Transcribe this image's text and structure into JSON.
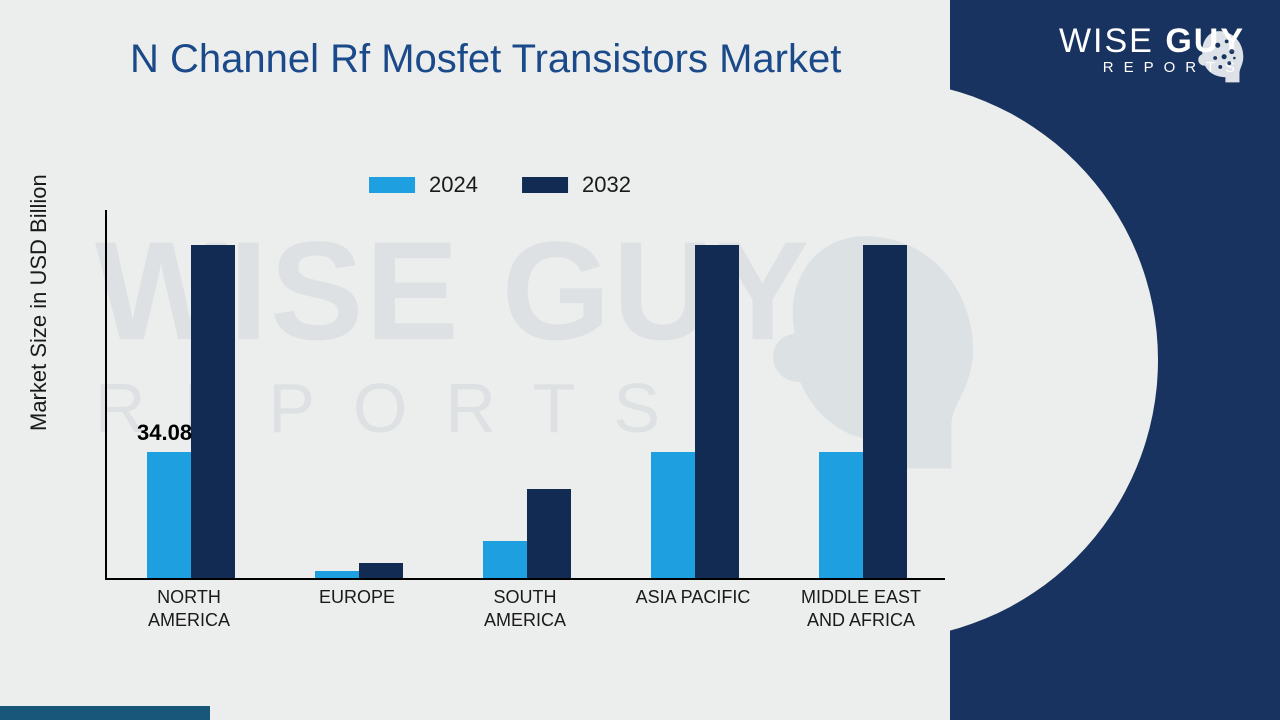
{
  "page": {
    "background_color": "#eceded",
    "accent_color": "#19577a",
    "panel_color": "#18335f"
  },
  "brand": {
    "line1_a": "WISE",
    "line1_b": "GUY",
    "line2": "REPORTS",
    "text_color": "#ffffff"
  },
  "title": {
    "text": "N Channel Rf Mosfet Transistors Market",
    "color": "#1b4a8a",
    "fontsize": 40
  },
  "watermark": {
    "big": "WISE GUY",
    "sub": "REPORTS"
  },
  "chart": {
    "type": "grouped-bar",
    "y_axis_label": "Market Size in USD Billion",
    "y_max": 100,
    "legend": [
      {
        "label": "2024",
        "color": "#1e9fe0"
      },
      {
        "label": "2032",
        "color": "#112b53"
      }
    ],
    "axis_color": "#000000",
    "label_fontsize": 22,
    "category_fontsize": 18,
    "categories": [
      {
        "name": "NORTH AMERICA",
        "a": 34.08,
        "b": 90,
        "a_label": "34.08"
      },
      {
        "name": "EUROPE",
        "a": 2,
        "b": 4
      },
      {
        "name": "SOUTH AMERICA",
        "a": 10,
        "b": 24
      },
      {
        "name": "ASIA PACIFIC",
        "a": 34,
        "b": 90
      },
      {
        "name": "MIDDLE EAST AND AFRICA",
        "a": 34,
        "b": 90
      }
    ]
  }
}
